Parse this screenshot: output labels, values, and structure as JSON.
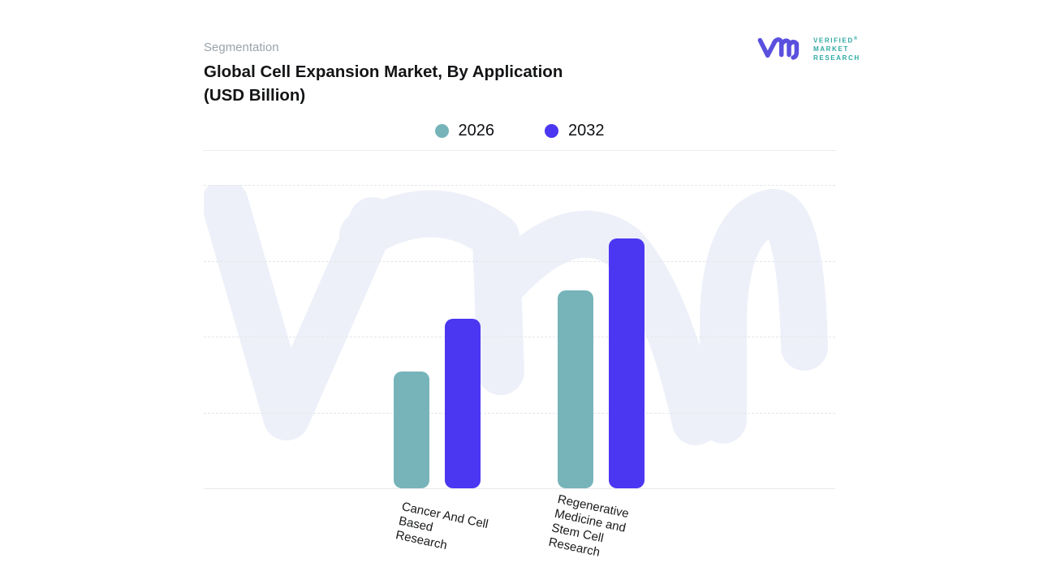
{
  "header": {
    "eyebrow": "Segmentation",
    "title_line1": "Global Cell Expansion Market, By Application",
    "title_line2": "(USD Billion)"
  },
  "logo": {
    "lines": [
      "VERIFIED",
      "MARKET",
      "RESEARCH"
    ],
    "registered_mark": "®",
    "monogram_color": "#5A50DE",
    "text_color": "#2EA9A2"
  },
  "legend": [
    {
      "label": "2026",
      "color": "#76B4BA"
    },
    {
      "label": "2032",
      "color": "#4B36F2"
    }
  ],
  "chart_data": {
    "type": "bar",
    "title": "Global Cell Expansion Market, By Application (USD Billion)",
    "categories": [
      "Cancer And Cell Based Research",
      "Regenerative Medicine and Stem Cell Research"
    ],
    "category_label_lines": [
      [
        "Cancer And Cell",
        "Based",
        "Research"
      ],
      [
        "Regenerative",
        "Medicine and",
        "Stem Cell",
        "Research"
      ]
    ],
    "series": [
      {
        "name": "2026",
        "color": "#76B4BA",
        "values": [
          1.54,
          2.61
        ]
      },
      {
        "name": "2032",
        "color": "#4B36F2",
        "values": [
          2.24,
          3.29
        ]
      }
    ],
    "xlabel": "",
    "ylabel": "",
    "ylim": [
      0,
      4
    ],
    "y_axis_labels_visible": false,
    "gridlines": "horizontal-dashed",
    "legend_position": "top-center",
    "note": "y-axis has no tick labels; values estimated in gridline units (1 unit = one dashed gridline interval)"
  }
}
